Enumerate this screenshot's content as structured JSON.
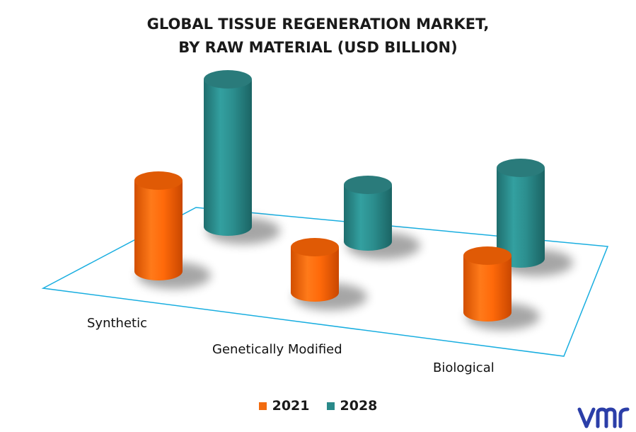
{
  "title_line1": "GLOBAL TISSUE REGENERATION MARKET,",
  "title_line2": "BY RAW MATERIAL (USD BILLION)",
  "colors": {
    "series_2021": "#f26b0f",
    "series_2028": "#2a8a8a",
    "floor_border": "#19aee0"
  },
  "logo": {
    "text": "vmr",
    "color": "#2b3ea8"
  },
  "chart_data": {
    "type": "bar",
    "title": "GLOBAL TISSUE REGENERATION MARKET, BY RAW MATERIAL (USD BILLION)",
    "categories": [
      "Synthetic",
      "Genetically Modified",
      "Biological"
    ],
    "series": [
      {
        "name": "2021",
        "values": [
          4.0,
          2.0,
          2.5
        ]
      },
      {
        "name": "2028",
        "values": [
          6.5,
          2.5,
          4.0
        ]
      }
    ],
    "ylim": [
      0,
      7
    ],
    "legend": [
      "2021",
      "2028"
    ],
    "legend_position": "bottom",
    "style": "3D cylinders",
    "grid": false
  }
}
